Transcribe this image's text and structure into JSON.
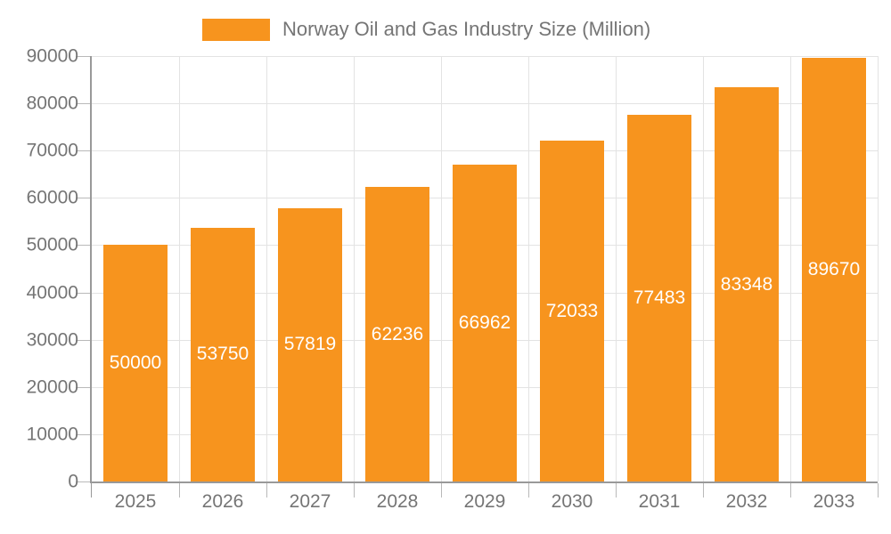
{
  "chart_data": {
    "type": "bar",
    "title": "Norway Oil and Gas Industry Size (Million)",
    "categories": [
      "2025",
      "2026",
      "2027",
      "2028",
      "2029",
      "2030",
      "2031",
      "2032",
      "2033"
    ],
    "values": [
      50000,
      53750,
      57819,
      62236,
      66962,
      72033,
      77483,
      83348,
      89670
    ],
    "series_name": "Norway Oil and Gas Industry Size (Million)",
    "xlabel": "",
    "ylabel": "",
    "ylim": [
      0,
      90000
    ],
    "ytick_step": 10000,
    "ytick_labels": [
      "0",
      "10000",
      "20000",
      "30000",
      "40000",
      "50000",
      "60000",
      "70000",
      "80000",
      "90000"
    ],
    "grid": true,
    "legend_position": "top-center",
    "value_labels_position": "inside-center",
    "colors": {
      "bar": "#F7941E",
      "value_label": "#FFFFFF",
      "axis_label": "#757575",
      "legend_text": "#757575",
      "gridline": "#E3E3E3",
      "axis_line": "#999999",
      "tick": "#B9B9B9",
      "background": "#FFFFFF"
    }
  }
}
